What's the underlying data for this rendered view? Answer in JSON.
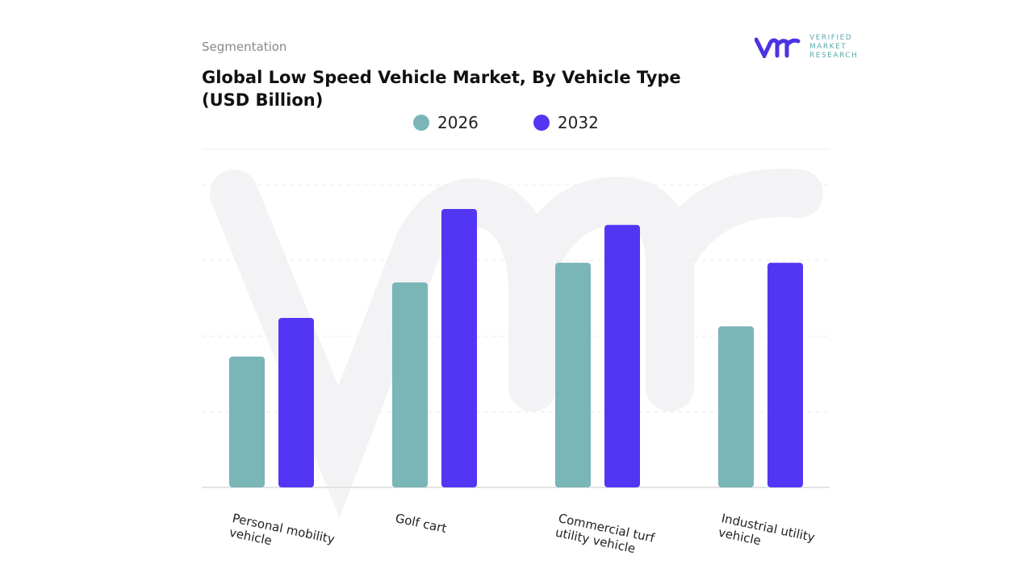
{
  "header": {
    "segment_label": "Segmentation",
    "logo_text": "VERIFIED MARKET RESEARCH"
  },
  "chart_data": {
    "type": "bar",
    "title": "Global Low Speed Vehicle Market, By Vehicle Type (USD Billion)",
    "categories": [
      "Personal mobility vehicle",
      "Golf cart",
      "Commercial turf utility vehicle",
      "Industrial utility vehicle"
    ],
    "series": [
      {
        "name": "2026",
        "color": "#7ab5b8",
        "values": [
          1.73,
          2.71,
          2.97,
          2.13
        ]
      },
      {
        "name": "2032",
        "color": "#5236f4",
        "values": [
          2.24,
          3.68,
          3.47,
          2.97
        ]
      }
    ],
    "ylim": [
      0,
      4
    ],
    "y_axis_labels_shown": false,
    "grid": "horizontal dashed",
    "legend_placement": "top-center"
  }
}
